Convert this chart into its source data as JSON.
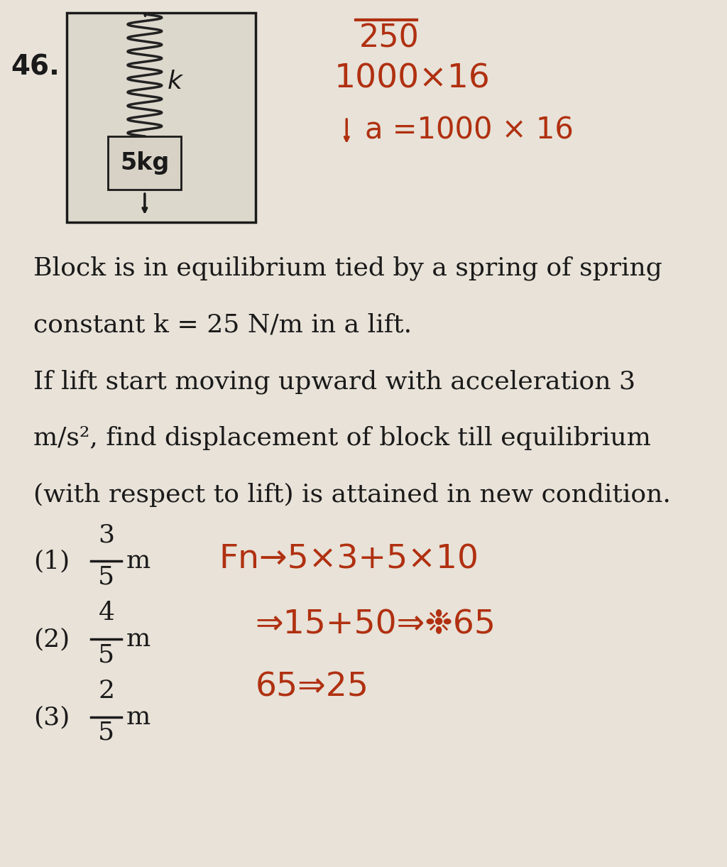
{
  "background_color": "#e8e2d8",
  "question_number": "46.",
  "block_label": "5kg",
  "spring_label": "k",
  "problem_text_line1": "Block is in equilibrium tied by a spring of spring",
  "problem_text_line2": "constant k = 25 N/m in a lift.",
  "problem_text_line3": "If lift start moving upward with acceleration 3",
  "problem_text_line4": "m/s², find displacement of block till equilibrium",
  "problem_text_line5": "(with respect to lift) is attained in new condition.",
  "option1_left": "(1)",
  "option1_frac_num": "3",
  "option1_frac_den": "5",
  "option1_unit": "m",
  "option2_left": "(2)",
  "option2_frac_num": "4",
  "option2_frac_den": "5",
  "option2_unit": "m",
  "option3_left": "(3)",
  "option3_frac_num": "2",
  "option3_frac_den": "5",
  "option3_unit": "m",
  "text_color": "#1a1a1a",
  "handwritten_color": "#b03010",
  "spring_color": "#222222"
}
